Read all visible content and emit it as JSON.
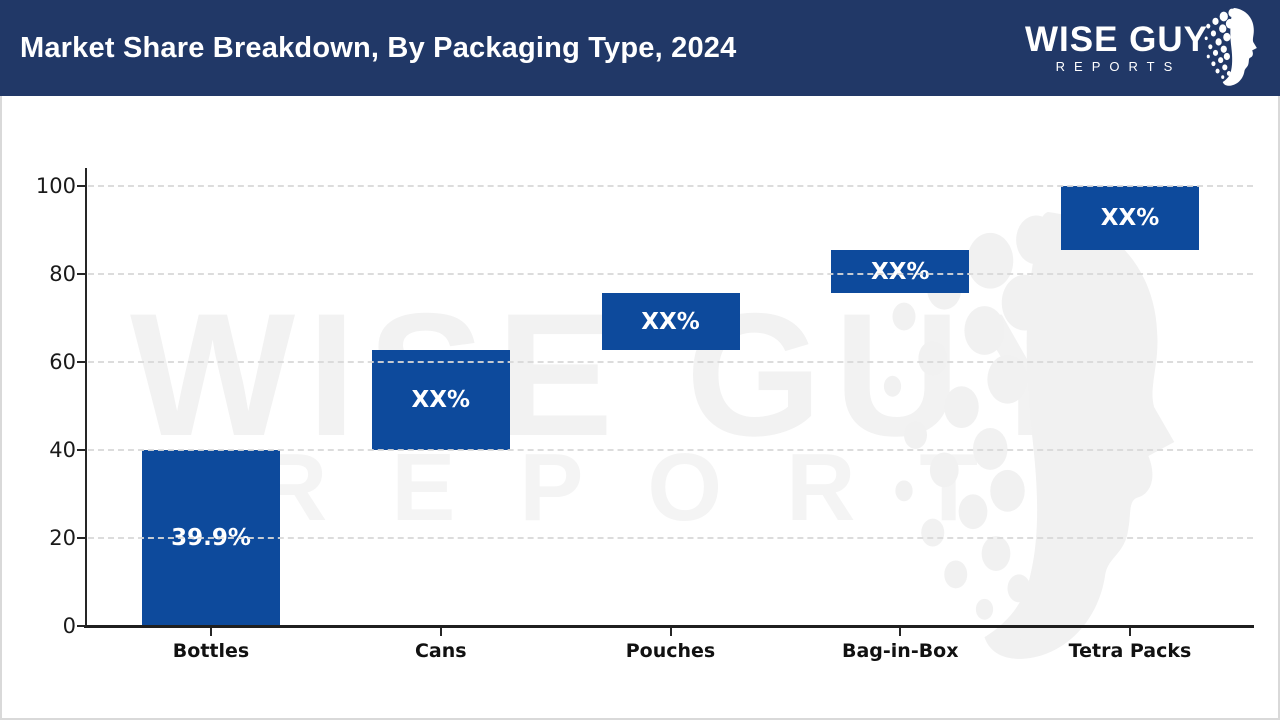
{
  "header": {
    "title": "Market Share Breakdown, By Packaging Type, 2024",
    "background_color": "#213867",
    "logo": {
      "line1": "WISE GUY",
      "line2": "REPORTS"
    }
  },
  "watermark": {
    "line1": "WISE GUY",
    "line2": "REPORTS"
  },
  "chart_data": {
    "type": "bar",
    "subtype": "waterfall",
    "title": "Market Share Breakdown, By Packaging Type, 2024",
    "categories": [
      "Bottles",
      "Cans",
      "Pouches",
      "Bag-in-Box",
      "Tetra Packs"
    ],
    "series": [
      {
        "name": "Market share (%)",
        "segments": [
          {
            "category": "Bottles",
            "start": 0,
            "end": 39.9,
            "label": "39.9%"
          },
          {
            "category": "Cans",
            "start": 39.9,
            "end": 62.7,
            "label": "XX%"
          },
          {
            "category": "Pouches",
            "start": 62.7,
            "end": 75.7,
            "label": "XX%"
          },
          {
            "category": "Bag-in-Box",
            "start": 75.7,
            "end": 85.4,
            "label": "XX%"
          },
          {
            "category": "Tetra Packs",
            "start": 85.4,
            "end": 100,
            "label": "XX%"
          }
        ]
      }
    ],
    "xlabel": "",
    "ylabel": "",
    "ylim": [
      0,
      100
    ],
    "yticks": [
      0,
      20,
      40,
      60,
      80,
      100
    ],
    "grid": "horizontal-dashed",
    "gridline_color": "#d9d9d9",
    "legend": "none",
    "bar_color": "#0d4a9c",
    "bar_label_color": "#ffffff"
  }
}
